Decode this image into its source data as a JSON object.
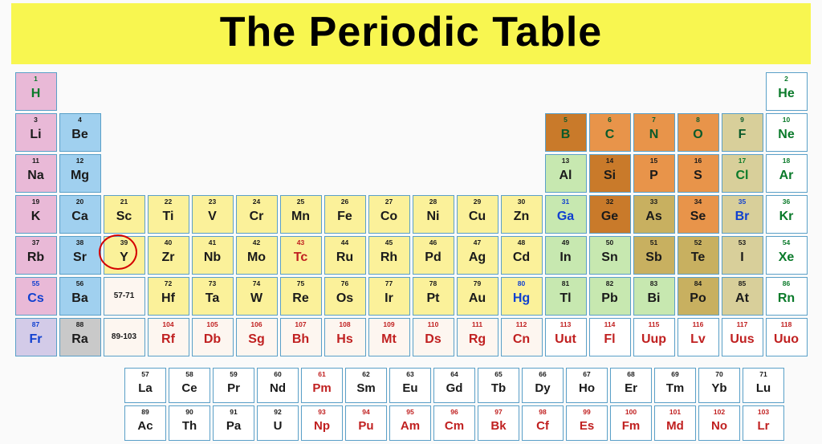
{
  "title": "The Periodic Table",
  "title_bg": "#f8f650",
  "colors": {
    "pink": "#e9b9d7",
    "blue": "#a0d0ef",
    "yellow": "#fbf19a",
    "orange": "#e8944a",
    "green": "#c7e8b0",
    "olive": "#c8b060",
    "tan": "#d8cf9a",
    "lav": "#d3cbe8",
    "gray": "#c9c9c9",
    "white": "#fdf6f0",
    "plain": "#ffffff",
    "dorange": "#c97a2a"
  },
  "text_colors": {
    "black": "#1a1a1a",
    "red": "#c02020",
    "blue": "#1040d0",
    "green": "#0a7a2a",
    "darkgreen": "#0a5a2a"
  },
  "main": [
    {
      "row": 1,
      "col": 1,
      "n": "1",
      "s": "H",
      "bg": "pink",
      "tc": "green"
    },
    {
      "row": 1,
      "col": 18,
      "n": "2",
      "s": "He",
      "bg": "plain",
      "tc": "green"
    },
    {
      "row": 2,
      "col": 1,
      "n": "3",
      "s": "Li",
      "bg": "pink",
      "tc": "black"
    },
    {
      "row": 2,
      "col": 2,
      "n": "4",
      "s": "Be",
      "bg": "blue",
      "tc": "black"
    },
    {
      "row": 2,
      "col": 13,
      "n": "5",
      "s": "B",
      "bg": "dorange",
      "tc": "darkgreen"
    },
    {
      "row": 2,
      "col": 14,
      "n": "6",
      "s": "C",
      "bg": "orange",
      "tc": "darkgreen"
    },
    {
      "row": 2,
      "col": 15,
      "n": "7",
      "s": "N",
      "bg": "orange",
      "tc": "darkgreen"
    },
    {
      "row": 2,
      "col": 16,
      "n": "8",
      "s": "O",
      "bg": "orange",
      "tc": "darkgreen"
    },
    {
      "row": 2,
      "col": 17,
      "n": "9",
      "s": "F",
      "bg": "tan",
      "tc": "darkgreen"
    },
    {
      "row": 2,
      "col": 18,
      "n": "10",
      "s": "Ne",
      "bg": "plain",
      "tc": "green"
    },
    {
      "row": 3,
      "col": 1,
      "n": "11",
      "s": "Na",
      "bg": "pink",
      "tc": "black"
    },
    {
      "row": 3,
      "col": 2,
      "n": "12",
      "s": "Mg",
      "bg": "blue",
      "tc": "black"
    },
    {
      "row": 3,
      "col": 13,
      "n": "13",
      "s": "Al",
      "bg": "green",
      "tc": "black"
    },
    {
      "row": 3,
      "col": 14,
      "n": "14",
      "s": "Si",
      "bg": "dorange",
      "tc": "black"
    },
    {
      "row": 3,
      "col": 15,
      "n": "15",
      "s": "P",
      "bg": "orange",
      "tc": "black"
    },
    {
      "row": 3,
      "col": 16,
      "n": "16",
      "s": "S",
      "bg": "orange",
      "tc": "black"
    },
    {
      "row": 3,
      "col": 17,
      "n": "17",
      "s": "Cl",
      "bg": "tan",
      "tc": "green"
    },
    {
      "row": 3,
      "col": 18,
      "n": "18",
      "s": "Ar",
      "bg": "plain",
      "tc": "green"
    },
    {
      "row": 4,
      "col": 1,
      "n": "19",
      "s": "K",
      "bg": "pink",
      "tc": "black"
    },
    {
      "row": 4,
      "col": 2,
      "n": "20",
      "s": "Ca",
      "bg": "blue",
      "tc": "black"
    },
    {
      "row": 4,
      "col": 3,
      "n": "21",
      "s": "Sc",
      "bg": "yellow",
      "tc": "black"
    },
    {
      "row": 4,
      "col": 4,
      "n": "22",
      "s": "Ti",
      "bg": "yellow",
      "tc": "black"
    },
    {
      "row": 4,
      "col": 5,
      "n": "23",
      "s": "V",
      "bg": "yellow",
      "tc": "black"
    },
    {
      "row": 4,
      "col": 6,
      "n": "24",
      "s": "Cr",
      "bg": "yellow",
      "tc": "black"
    },
    {
      "row": 4,
      "col": 7,
      "n": "25",
      "s": "Mn",
      "bg": "yellow",
      "tc": "black"
    },
    {
      "row": 4,
      "col": 8,
      "n": "26",
      "s": "Fe",
      "bg": "yellow",
      "tc": "black"
    },
    {
      "row": 4,
      "col": 9,
      "n": "27",
      "s": "Co",
      "bg": "yellow",
      "tc": "black"
    },
    {
      "row": 4,
      "col": 10,
      "n": "28",
      "s": "Ni",
      "bg": "yellow",
      "tc": "black"
    },
    {
      "row": 4,
      "col": 11,
      "n": "29",
      "s": "Cu",
      "bg": "yellow",
      "tc": "black"
    },
    {
      "row": 4,
      "col": 12,
      "n": "30",
      "s": "Zn",
      "bg": "yellow",
      "tc": "black"
    },
    {
      "row": 4,
      "col": 13,
      "n": "31",
      "s": "Ga",
      "bg": "green",
      "tc": "blue"
    },
    {
      "row": 4,
      "col": 14,
      "n": "32",
      "s": "Ge",
      "bg": "dorange",
      "tc": "black"
    },
    {
      "row": 4,
      "col": 15,
      "n": "33",
      "s": "As",
      "bg": "olive",
      "tc": "black"
    },
    {
      "row": 4,
      "col": 16,
      "n": "34",
      "s": "Se",
      "bg": "orange",
      "tc": "black"
    },
    {
      "row": 4,
      "col": 17,
      "n": "35",
      "s": "Br",
      "bg": "tan",
      "tc": "blue"
    },
    {
      "row": 4,
      "col": 18,
      "n": "36",
      "s": "Kr",
      "bg": "plain",
      "tc": "green"
    },
    {
      "row": 5,
      "col": 1,
      "n": "37",
      "s": "Rb",
      "bg": "pink",
      "tc": "black"
    },
    {
      "row": 5,
      "col": 2,
      "n": "38",
      "s": "Sr",
      "bg": "blue",
      "tc": "black"
    },
    {
      "row": 5,
      "col": 3,
      "n": "39",
      "s": "Y",
      "bg": "yellow",
      "tc": "black",
      "circle": true
    },
    {
      "row": 5,
      "col": 4,
      "n": "40",
      "s": "Zr",
      "bg": "yellow",
      "tc": "black"
    },
    {
      "row": 5,
      "col": 5,
      "n": "41",
      "s": "Nb",
      "bg": "yellow",
      "tc": "black"
    },
    {
      "row": 5,
      "col": 6,
      "n": "42",
      "s": "Mo",
      "bg": "yellow",
      "tc": "black"
    },
    {
      "row": 5,
      "col": 7,
      "n": "43",
      "s": "Tc",
      "bg": "yellow",
      "tc": "red"
    },
    {
      "row": 5,
      "col": 8,
      "n": "44",
      "s": "Ru",
      "bg": "yellow",
      "tc": "black"
    },
    {
      "row": 5,
      "col": 9,
      "n": "45",
      "s": "Rh",
      "bg": "yellow",
      "tc": "black"
    },
    {
      "row": 5,
      "col": 10,
      "n": "46",
      "s": "Pd",
      "bg": "yellow",
      "tc": "black"
    },
    {
      "row": 5,
      "col": 11,
      "n": "47",
      "s": "Ag",
      "bg": "yellow",
      "tc": "black"
    },
    {
      "row": 5,
      "col": 12,
      "n": "48",
      "s": "Cd",
      "bg": "yellow",
      "tc": "black"
    },
    {
      "row": 5,
      "col": 13,
      "n": "49",
      "s": "In",
      "bg": "green",
      "tc": "black"
    },
    {
      "row": 5,
      "col": 14,
      "n": "50",
      "s": "Sn",
      "bg": "green",
      "tc": "black"
    },
    {
      "row": 5,
      "col": 15,
      "n": "51",
      "s": "Sb",
      "bg": "olive",
      "tc": "black"
    },
    {
      "row": 5,
      "col": 16,
      "n": "52",
      "s": "Te",
      "bg": "olive",
      "tc": "black"
    },
    {
      "row": 5,
      "col": 17,
      "n": "53",
      "s": "I",
      "bg": "tan",
      "tc": "black"
    },
    {
      "row": 5,
      "col": 18,
      "n": "54",
      "s": "Xe",
      "bg": "plain",
      "tc": "green"
    },
    {
      "row": 6,
      "col": 1,
      "n": "55",
      "s": "Cs",
      "bg": "pink",
      "tc": "blue"
    },
    {
      "row": 6,
      "col": 2,
      "n": "56",
      "s": "Ba",
      "bg": "blue",
      "tc": "black"
    },
    {
      "row": 6,
      "col": 3,
      "n": "57-71",
      "s": "",
      "bg": "white",
      "tc": "black",
      "range": true
    },
    {
      "row": 6,
      "col": 4,
      "n": "72",
      "s": "Hf",
      "bg": "yellow",
      "tc": "black"
    },
    {
      "row": 6,
      "col": 5,
      "n": "73",
      "s": "Ta",
      "bg": "yellow",
      "tc": "black"
    },
    {
      "row": 6,
      "col": 6,
      "n": "74",
      "s": "W",
      "bg": "yellow",
      "tc": "black"
    },
    {
      "row": 6,
      "col": 7,
      "n": "75",
      "s": "Re",
      "bg": "yellow",
      "tc": "black"
    },
    {
      "row": 6,
      "col": 8,
      "n": "76",
      "s": "Os",
      "bg": "yellow",
      "tc": "black"
    },
    {
      "row": 6,
      "col": 9,
      "n": "77",
      "s": "Ir",
      "bg": "yellow",
      "tc": "black"
    },
    {
      "row": 6,
      "col": 10,
      "n": "78",
      "s": "Pt",
      "bg": "yellow",
      "tc": "black"
    },
    {
      "row": 6,
      "col": 11,
      "n": "79",
      "s": "Au",
      "bg": "yellow",
      "tc": "black"
    },
    {
      "row": 6,
      "col": 12,
      "n": "80",
      "s": "Hg",
      "bg": "yellow",
      "tc": "blue"
    },
    {
      "row": 6,
      "col": 13,
      "n": "81",
      "s": "Tl",
      "bg": "green",
      "tc": "black"
    },
    {
      "row": 6,
      "col": 14,
      "n": "82",
      "s": "Pb",
      "bg": "green",
      "tc": "black"
    },
    {
      "row": 6,
      "col": 15,
      "n": "83",
      "s": "Bi",
      "bg": "green",
      "tc": "black"
    },
    {
      "row": 6,
      "col": 16,
      "n": "84",
      "s": "Po",
      "bg": "olive",
      "tc": "black"
    },
    {
      "row": 6,
      "col": 17,
      "n": "85",
      "s": "At",
      "bg": "tan",
      "tc": "black"
    },
    {
      "row": 6,
      "col": 18,
      "n": "86",
      "s": "Rn",
      "bg": "plain",
      "tc": "green"
    },
    {
      "row": 7,
      "col": 1,
      "n": "87",
      "s": "Fr",
      "bg": "lav",
      "tc": "blue"
    },
    {
      "row": 7,
      "col": 2,
      "n": "88",
      "s": "Ra",
      "bg": "gray",
      "tc": "black"
    },
    {
      "row": 7,
      "col": 3,
      "n": "89-103",
      "s": "",
      "bg": "white",
      "tc": "black",
      "range": true
    },
    {
      "row": 7,
      "col": 4,
      "n": "104",
      "s": "Rf",
      "bg": "white",
      "tc": "red"
    },
    {
      "row": 7,
      "col": 5,
      "n": "105",
      "s": "Db",
      "bg": "white",
      "tc": "red"
    },
    {
      "row": 7,
      "col": 6,
      "n": "106",
      "s": "Sg",
      "bg": "white",
      "tc": "red"
    },
    {
      "row": 7,
      "col": 7,
      "n": "107",
      "s": "Bh",
      "bg": "white",
      "tc": "red"
    },
    {
      "row": 7,
      "col": 8,
      "n": "108",
      "s": "Hs",
      "bg": "white",
      "tc": "red"
    },
    {
      "row": 7,
      "col": 9,
      "n": "109",
      "s": "Mt",
      "bg": "white",
      "tc": "red"
    },
    {
      "row": 7,
      "col": 10,
      "n": "110",
      "s": "Ds",
      "bg": "white",
      "tc": "red"
    },
    {
      "row": 7,
      "col": 11,
      "n": "111",
      "s": "Rg",
      "bg": "white",
      "tc": "red"
    },
    {
      "row": 7,
      "col": 12,
      "n": "112",
      "s": "Cn",
      "bg": "white",
      "tc": "red"
    },
    {
      "row": 7,
      "col": 13,
      "n": "113",
      "s": "Uut",
      "bg": "plain",
      "tc": "red"
    },
    {
      "row": 7,
      "col": 14,
      "n": "114",
      "s": "Fl",
      "bg": "plain",
      "tc": "red"
    },
    {
      "row": 7,
      "col": 15,
      "n": "115",
      "s": "Uup",
      "bg": "plain",
      "tc": "red"
    },
    {
      "row": 7,
      "col": 16,
      "n": "116",
      "s": "Lv",
      "bg": "plain",
      "tc": "red"
    },
    {
      "row": 7,
      "col": 17,
      "n": "117",
      "s": "Uus",
      "bg": "plain",
      "tc": "red"
    },
    {
      "row": 7,
      "col": 18,
      "n": "118",
      "s": "Uuo",
      "bg": "plain",
      "tc": "red"
    }
  ],
  "lanact": [
    {
      "n": "57",
      "s": "La",
      "tc": "black"
    },
    {
      "n": "58",
      "s": "Ce",
      "tc": "black"
    },
    {
      "n": "59",
      "s": "Pr",
      "tc": "black"
    },
    {
      "n": "60",
      "s": "Nd",
      "tc": "black"
    },
    {
      "n": "61",
      "s": "Pm",
      "tc": "red"
    },
    {
      "n": "62",
      "s": "Sm",
      "tc": "black"
    },
    {
      "n": "63",
      "s": "Eu",
      "tc": "black"
    },
    {
      "n": "64",
      "s": "Gd",
      "tc": "black"
    },
    {
      "n": "65",
      "s": "Tb",
      "tc": "black"
    },
    {
      "n": "66",
      "s": "Dy",
      "tc": "black"
    },
    {
      "n": "67",
      "s": "Ho",
      "tc": "black"
    },
    {
      "n": "68",
      "s": "Er",
      "tc": "black"
    },
    {
      "n": "69",
      "s": "Tm",
      "tc": "black"
    },
    {
      "n": "70",
      "s": "Yb",
      "tc": "black"
    },
    {
      "n": "71",
      "s": "Lu",
      "tc": "black"
    },
    {
      "n": "89",
      "s": "Ac",
      "tc": "black"
    },
    {
      "n": "90",
      "s": "Th",
      "tc": "black"
    },
    {
      "n": "91",
      "s": "Pa",
      "tc": "black"
    },
    {
      "n": "92",
      "s": "U",
      "tc": "black"
    },
    {
      "n": "93",
      "s": "Np",
      "tc": "red"
    },
    {
      "n": "94",
      "s": "Pu",
      "tc": "red"
    },
    {
      "n": "95",
      "s": "Am",
      "tc": "red"
    },
    {
      "n": "96",
      "s": "Cm",
      "tc": "red"
    },
    {
      "n": "97",
      "s": "Bk",
      "tc": "red"
    },
    {
      "n": "98",
      "s": "Cf",
      "tc": "red"
    },
    {
      "n": "99",
      "s": "Es",
      "tc": "red"
    },
    {
      "n": "100",
      "s": "Fm",
      "tc": "red"
    },
    {
      "n": "101",
      "s": "Md",
      "tc": "red"
    },
    {
      "n": "102",
      "s": "No",
      "tc": "red"
    },
    {
      "n": "103",
      "s": "Lr",
      "tc": "red"
    }
  ],
  "circle_mark": {
    "size_w": 48,
    "size_h": 44
  },
  "cell_size": {
    "w": 52,
    "h": 48,
    "gap": 3
  }
}
